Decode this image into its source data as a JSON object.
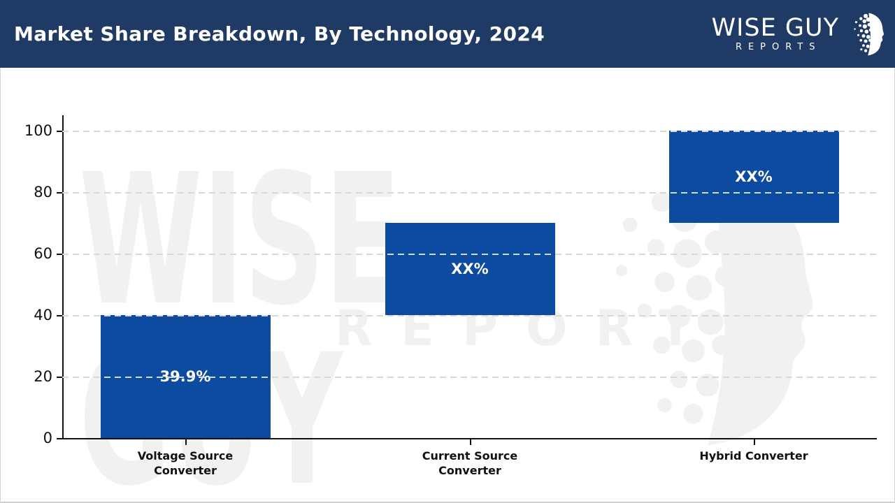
{
  "header": {
    "title": "Market Share Breakdown, By Technology, 2024",
    "bg_color": "#203a66",
    "logo": {
      "line1": "WISE GUY",
      "line2": "REPORTS",
      "face_icon": "dotted-head-profile-icon",
      "color": "#ffffff"
    }
  },
  "watermark": {
    "line1": "WISE GUY",
    "line2": "REPORTS",
    "face_icon": "dotted-head-profile-icon",
    "color": "#f1f1f1"
  },
  "chart_data": {
    "type": "bar",
    "subtype": "floating-waterfall",
    "title": "Market Share Breakdown, By Technology, 2024",
    "categories": [
      "Voltage Source\nConverter",
      "Current Source\nConverter",
      "Hybrid Converter"
    ],
    "bars": [
      {
        "category": "Voltage Source Converter",
        "from": 0,
        "to": 39.9,
        "label": "39.9%"
      },
      {
        "category": "Current Source Converter",
        "from": 40,
        "to": 70,
        "label": "XX%"
      },
      {
        "category": "Hybrid Converter",
        "from": 70,
        "to": 100,
        "label": "XX%"
      }
    ],
    "ylim": [
      0,
      105
    ],
    "yticks": [
      0,
      20,
      40,
      60,
      80,
      100
    ],
    "ytick_labels": [
      "0",
      "20",
      "40",
      "60",
      "80",
      "100"
    ],
    "xlabel": "",
    "ylabel": "",
    "grid": "horizontal-dashed",
    "grid_above_bars": true,
    "legend": "none",
    "bar_color": "#0c4ba0",
    "bar_label_color": "#ffffff",
    "axis_color": "#111111"
  }
}
